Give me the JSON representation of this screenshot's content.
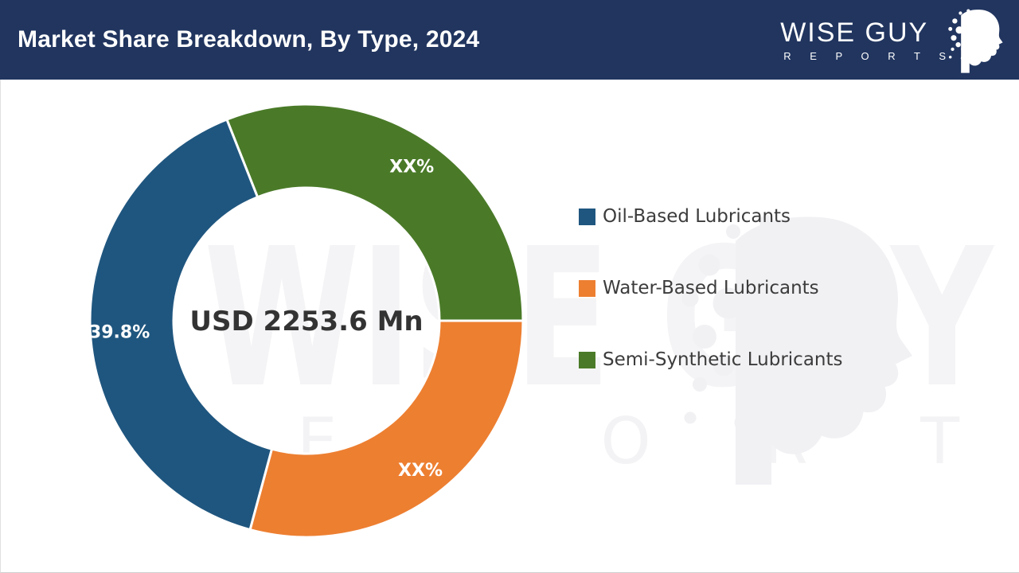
{
  "header": {
    "title": "Market Share Breakdown, By Type, 2024",
    "bg_color": "#21355F",
    "logo": {
      "name": "WISE GUY",
      "sub": "R E P O R T S"
    }
  },
  "chart_data": {
    "type": "pie",
    "subtype": "donut",
    "title": "Market Share Breakdown, By Type, 2024",
    "center_label": "USD 2253.6 Mn",
    "total_value": "USD 2253.6 Mn",
    "donut_hole_ratio": 0.614,
    "start_angle_deg": -111.6,
    "legend_position": "right",
    "segments": [
      {
        "name": "Semi-Synthetic Lubricants",
        "display_label": "XX%",
        "value_pct": 31.0,
        "color": "#4A7A28",
        "label_color": "#ffffff"
      },
      {
        "name": "Water-Based Lubricants",
        "display_label": "XX%",
        "value_pct": 29.2,
        "color": "#ED7F31",
        "label_color": "#ffffff"
      },
      {
        "name": "Oil-Based Lubricants",
        "display_label": "39.8%",
        "value_pct": 39.8,
        "color": "#1F567F",
        "label_color": "#ffffff"
      }
    ]
  },
  "legend": {
    "items": [
      {
        "label": "Oil-Based Lubricants",
        "color": "#1F567F"
      },
      {
        "label": "Water-Based Lubricants",
        "color": "#ED7F31"
      },
      {
        "label": "Semi-Synthetic Lubricants",
        "color": "#4A7A28"
      }
    ]
  },
  "watermark": {
    "line1": "WISE GUY",
    "line2": "R E P O R T S"
  }
}
